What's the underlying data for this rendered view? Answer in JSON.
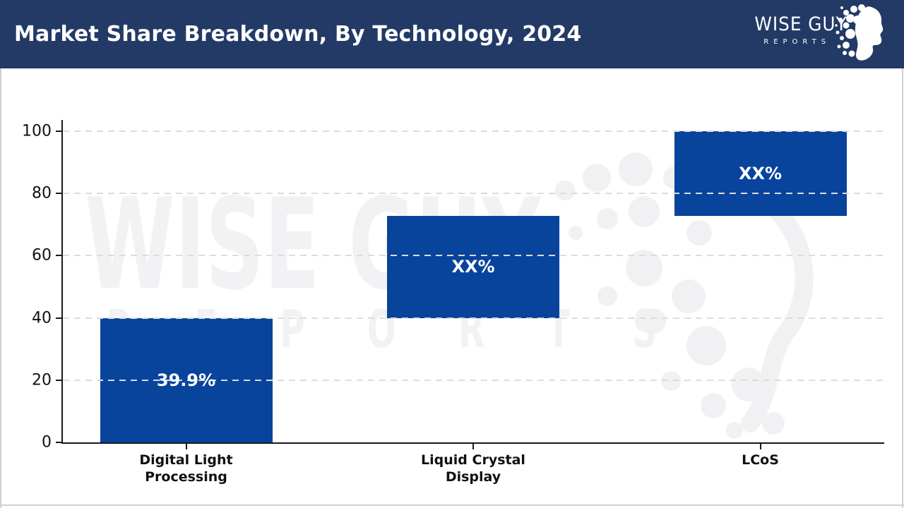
{
  "header": {
    "title": "Market Share Breakdown, By Technology, 2024",
    "logo": {
      "line1": "WISE GUY",
      "line2": "REPORTS"
    }
  },
  "watermark": {
    "line1": "WISE GUY",
    "line2": "R E P O R T S"
  },
  "chart_data": {
    "type": "bar",
    "subtype": "floating-segment waterfall of market share",
    "title": "Market Share Breakdown, By Technology, 2024",
    "categories": [
      "Digital Light\nProcessing",
      "Liquid Crystal\nDisplay",
      "LCoS"
    ],
    "bars": [
      {
        "category": "Digital Light Processing",
        "base": 0,
        "top": 39.9,
        "label": "39.9%"
      },
      {
        "category": "Liquid Crystal Display",
        "base": 39.9,
        "top": 72.8,
        "label": "XX%"
      },
      {
        "category": "LCoS",
        "base": 72.8,
        "top": 100,
        "label": "XX%"
      }
    ],
    "yticks": [
      0,
      20,
      40,
      60,
      80,
      100
    ],
    "ylim": [
      0,
      103.6
    ],
    "xlabel": "",
    "ylabel": "",
    "grid": {
      "axis": "y",
      "style": "dashed",
      "on": true
    },
    "legend": null,
    "bar_color": "#08439C",
    "value_label_color": "#FFFFFF"
  },
  "colors": {
    "header_bg": "#233A66",
    "bar": "#08439C",
    "grid": "#DCDCDC",
    "axis": "#1A1A1A",
    "watermark": "#F2F2F4",
    "frame_border": "#CFCFCF",
    "tick_text": "#111111",
    "title_text": "#FFFFFF"
  }
}
